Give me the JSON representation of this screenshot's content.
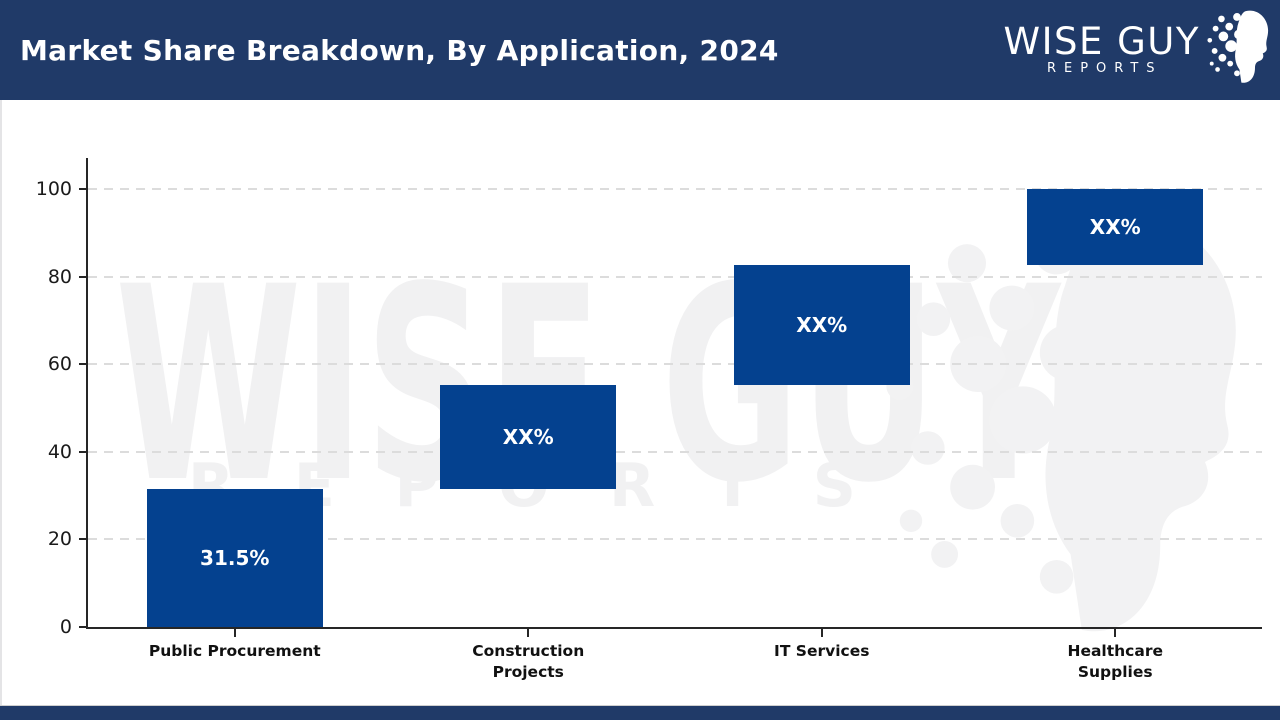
{
  "header": {
    "title": "Market Share Breakdown, By Application, 2024",
    "logo": {
      "wordmark": "WISE GUY",
      "subtitle": "REPORTS"
    }
  },
  "watermark": {
    "line1": "WISE GUY",
    "line2": "REPORTS"
  },
  "colors": {
    "header_bg": "#203a68",
    "footer_bg": "#203a68",
    "bar": "#04418f",
    "bar_label_text": "#ffffff",
    "axis": "#262626",
    "tick_label_text": "#1a1a1a",
    "category_label_text": "#111111",
    "gridline": "#dcdcdc",
    "watermark_gray": "#f1f1f2",
    "title_text": "#ffffff"
  },
  "chart_data": {
    "type": "bar",
    "subtype": "waterfall",
    "title": "Market Share Breakdown, By Application, 2024",
    "xlabel": "",
    "ylabel": "",
    "ylim": [
      0,
      100
    ],
    "yticks": [
      0,
      20,
      40,
      60,
      80,
      100
    ],
    "grid": "horizontal-dashed",
    "legend": "none",
    "bar_color": "#04418f",
    "categories": [
      "Public Procurement",
      "Construction Projects",
      "IT Services",
      "Healthcare Supplies"
    ],
    "categories_lines": [
      [
        "Public Procurement"
      ],
      [
        "Construction",
        "Projects"
      ],
      [
        "IT Services"
      ],
      [
        "Healthcare",
        "Supplies"
      ]
    ],
    "segments": [
      {
        "category": "Public Procurement",
        "start": 0,
        "end": 31.5,
        "label": "31.5%"
      },
      {
        "category": "Construction Projects",
        "start": 31.5,
        "end": 55.3,
        "label": "XX%"
      },
      {
        "category": "IT Services",
        "start": 55.3,
        "end": 82.6,
        "label": "XX%"
      },
      {
        "category": "Healthcare Supplies",
        "start": 82.6,
        "end": 100,
        "label": "XX%"
      }
    ]
  }
}
